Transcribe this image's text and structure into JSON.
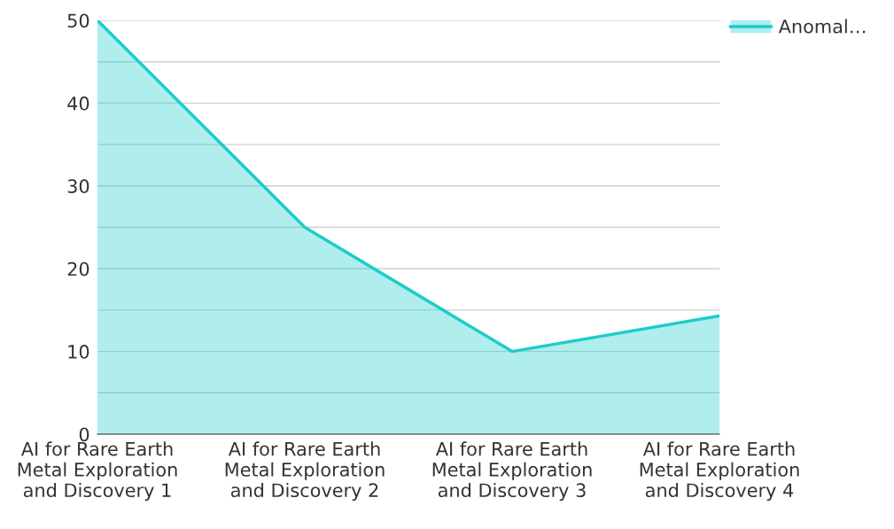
{
  "chart_data": {
    "type": "area",
    "categories": [
      "AI for Rare Earth\nMetal Exploration\nand Discovery 1",
      "AI for Rare Earth\nMetal Exploration\nand Discovery 2",
      "AI for Rare Earth\nMetal Exploration\nand Discovery 3",
      "AI for Rare Earth\nMetal Exploration\nand Discovery 4"
    ],
    "series": [
      {
        "name": "Anomal…",
        "color": "#1ccccc",
        "values": [
          50,
          25,
          10,
          14.3
        ]
      }
    ],
    "ylim": [
      0,
      50
    ],
    "yticks": [
      0,
      {
        "value": 5,
        "label": null
      },
      10,
      {
        "value": 15,
        "label": null
      },
      20,
      {
        "value": 25,
        "label": null
      },
      30,
      {
        "value": 35,
        "label": null
      },
      40,
      {
        "value": 45,
        "label": null
      },
      50
    ],
    "grid": "y",
    "legend": "top right"
  }
}
